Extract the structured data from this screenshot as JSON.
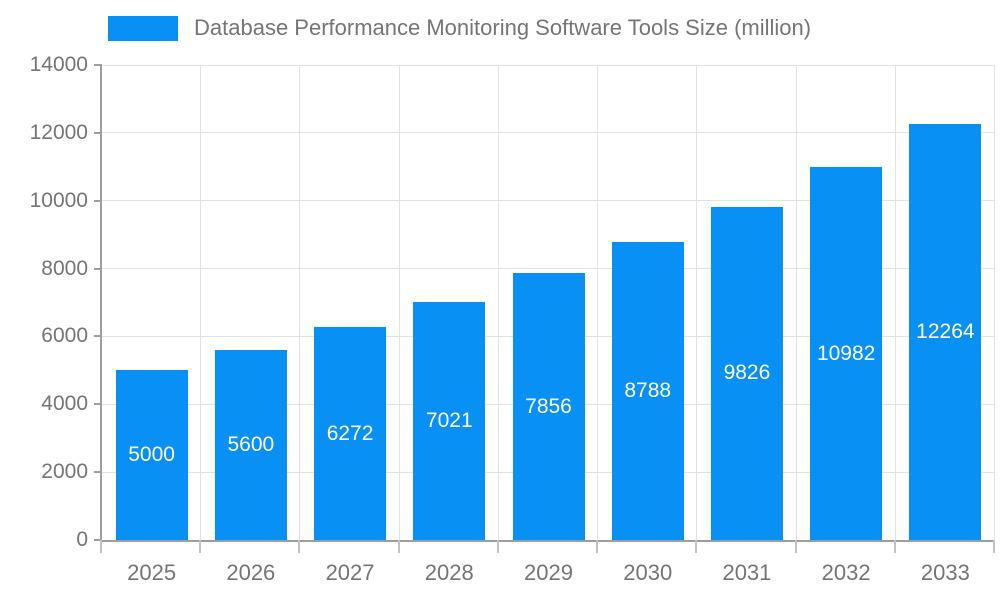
{
  "chart_data": {
    "type": "bar",
    "title": "Database Performance Monitoring Software Tools Size (million)",
    "categories": [
      "2025",
      "2026",
      "2027",
      "2028",
      "2029",
      "2030",
      "2031",
      "2032",
      "2033"
    ],
    "values": [
      5000,
      5600,
      6272,
      7021,
      7856,
      8788,
      9826,
      10982,
      12264
    ],
    "xlabel": "",
    "ylabel": "",
    "ylim": [
      0,
      14000
    ],
    "yticks": [
      0,
      2000,
      4000,
      6000,
      8000,
      10000,
      12000,
      14000
    ],
    "grid": true,
    "legend_position": "top-left",
    "bar_labels_inside": true,
    "colors": {
      "bar": "#0890f5",
      "bar_label": "#ffffff",
      "axis": "#9e9e9e",
      "x_tick": "#c2c2c2",
      "gridline": "#e2e2e2",
      "text": "#757575"
    }
  }
}
